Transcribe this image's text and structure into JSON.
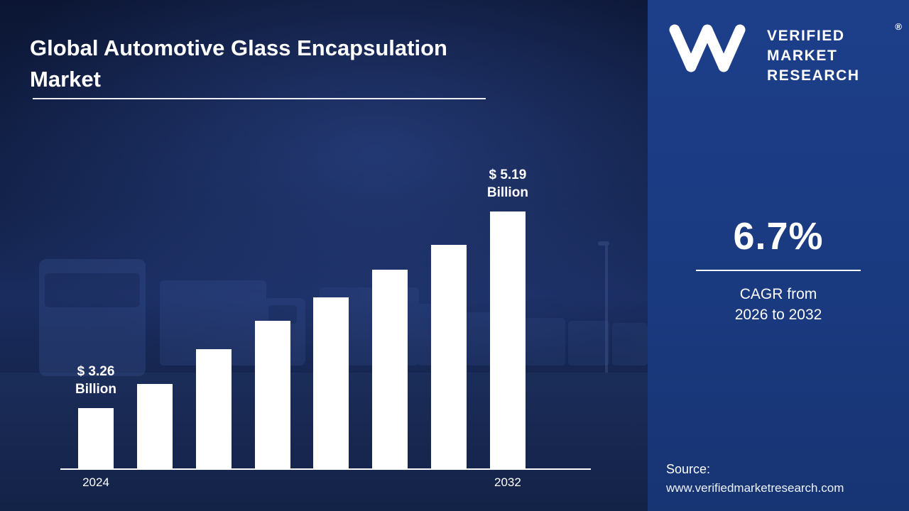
{
  "title": "Global Automotive Glass Encapsulation Market",
  "chart_data": {
    "type": "bar",
    "title": "Global Automotive Glass Encapsulation Market",
    "unit": "USD Billion",
    "bar_color": "#ffffff",
    "x_visible_ticks": [
      "2024",
      "2032"
    ],
    "values": [
      3.26,
      3.5,
      3.84,
      4.12,
      4.35,
      4.62,
      4.86,
      5.19
    ],
    "ylim": [
      3.0,
      5.5
    ],
    "grid": false,
    "legend": false,
    "annotations": [
      {
        "bar_index": 0,
        "lines": [
          "$ 3.26",
          "Billion"
        ]
      },
      {
        "bar_index": 7,
        "lines": [
          "$ 5.19",
          "Billion"
        ]
      }
    ]
  },
  "logo": {
    "brand_lines": [
      "VERIFIED",
      "MARKET",
      "RESEARCH"
    ],
    "registered_mark": "®"
  },
  "stats": {
    "cagr_value": "6.7%",
    "cagr_line1": "CAGR from",
    "cagr_line2": "2026 to 2032"
  },
  "source": {
    "label": "Source:",
    "url": "www.verifiedmarketresearch.com"
  },
  "colors": {
    "left_background": "#13224d",
    "panel_background": "#1a3a80",
    "bar": "#ffffff",
    "text": "#ffffff"
  }
}
